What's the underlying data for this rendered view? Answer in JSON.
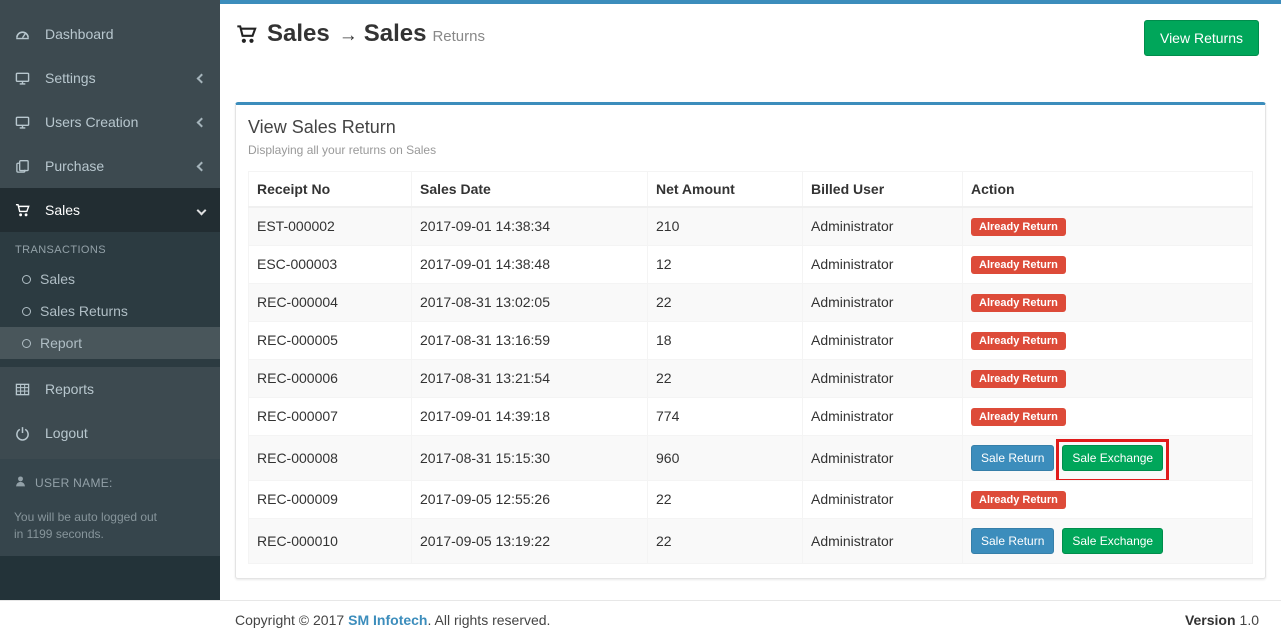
{
  "colors": {
    "primary": "#3c8dbc",
    "success": "#00a65a",
    "danger": "#dd4b39",
    "highlight_box": "#e01b1b",
    "sidebar_bg": "#3d4a50",
    "sidebar_active_bg": "#222d32",
    "submenu_bg": "#2c3b41"
  },
  "sidebar": {
    "items": [
      {
        "label": "Dashboard"
      },
      {
        "label": "Settings"
      },
      {
        "label": "Users Creation"
      },
      {
        "label": "Purchase"
      },
      {
        "label": "Sales"
      }
    ],
    "submenu": {
      "header": "TRANSACTIONS",
      "items": [
        {
          "label": "Sales"
        },
        {
          "label": "Sales Returns"
        },
        {
          "label": "Report"
        }
      ]
    },
    "reports_label": "Reports",
    "logout_label": "Logout",
    "user_panel": {
      "label": "USER NAME:",
      "notice": "You will be auto logged out in 1199 seconds."
    }
  },
  "header": {
    "section_title": "Sales",
    "arrow": "→",
    "page_title": "Sales",
    "page_subtitle": "Returns",
    "view_returns_button": "View Returns"
  },
  "card": {
    "title": "View Sales Return",
    "subtitle": "Displaying all your returns on Sales"
  },
  "table": {
    "columns": [
      "Receipt No",
      "Sales Date",
      "Net Amount",
      "Billed User",
      "Action"
    ],
    "rows": [
      {
        "receipt_no": "EST-000002",
        "sales_date": "2017-09-01 14:38:34",
        "net_amount": "210",
        "billed_user": "Administrator",
        "actions": [
          {
            "label": "Already Return",
            "type": "danger-badge"
          }
        ]
      },
      {
        "receipt_no": "ESC-000003",
        "sales_date": "2017-09-01 14:38:48",
        "net_amount": "12",
        "billed_user": "Administrator",
        "actions": [
          {
            "label": "Already Return",
            "type": "danger-badge"
          }
        ]
      },
      {
        "receipt_no": "REC-000004",
        "sales_date": "2017-08-31 13:02:05",
        "net_amount": "22",
        "billed_user": "Administrator",
        "actions": [
          {
            "label": "Already Return",
            "type": "danger-badge"
          }
        ]
      },
      {
        "receipt_no": "REC-000005",
        "sales_date": "2017-08-31 13:16:59",
        "net_amount": "18",
        "billed_user": "Administrator",
        "actions": [
          {
            "label": "Already Return",
            "type": "danger-badge"
          }
        ]
      },
      {
        "receipt_no": "REC-000006",
        "sales_date": "2017-08-31 13:21:54",
        "net_amount": "22",
        "billed_user": "Administrator",
        "actions": [
          {
            "label": "Already Return",
            "type": "danger-badge"
          }
        ]
      },
      {
        "receipt_no": "REC-000007",
        "sales_date": "2017-09-01 14:39:18",
        "net_amount": "774",
        "billed_user": "Administrator",
        "actions": [
          {
            "label": "Already Return",
            "type": "danger-badge"
          }
        ]
      },
      {
        "receipt_no": "REC-000008",
        "sales_date": "2017-08-31 15:15:30",
        "net_amount": "960",
        "billed_user": "Administrator",
        "actions": [
          {
            "label": "Sale Return",
            "type": "primary-button"
          },
          {
            "label": "Sale Exchange",
            "type": "success-button",
            "highlighted": true
          }
        ]
      },
      {
        "receipt_no": "REC-000009",
        "sales_date": "2017-09-05 12:55:26",
        "net_amount": "22",
        "billed_user": "Administrator",
        "actions": [
          {
            "label": "Already Return",
            "type": "danger-badge"
          }
        ]
      },
      {
        "receipt_no": "REC-000010",
        "sales_date": "2017-09-05 13:19:22",
        "net_amount": "22",
        "billed_user": "Administrator",
        "actions": [
          {
            "label": "Sale Return",
            "type": "primary-button"
          },
          {
            "label": "Sale Exchange",
            "type": "success-button"
          }
        ]
      }
    ]
  },
  "footer": {
    "copyright_prefix": "Copyright © 2017",
    "brand": "SM Infotech",
    "copyright_suffix": ". All rights reserved.",
    "version_label": "Version",
    "version_value": "1.0"
  }
}
